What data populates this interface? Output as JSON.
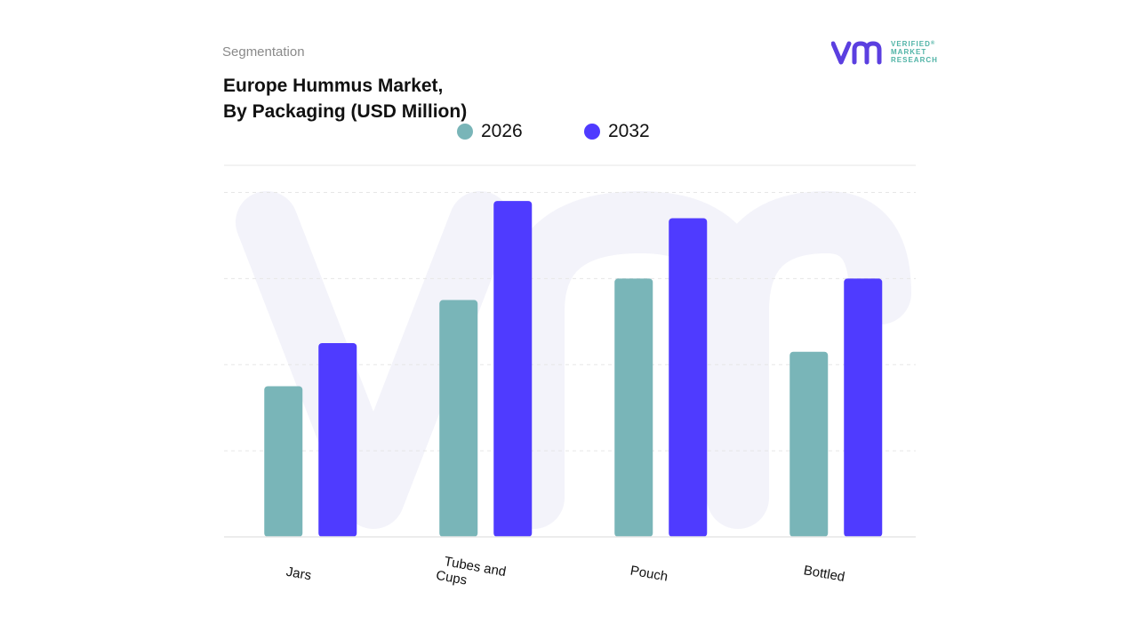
{
  "header": {
    "section": "Segmentation",
    "title_line1": "Europe Hummus Market,",
    "title_line2": "By Packaging (USD Million)"
  },
  "logo": {
    "line1": "VERIFIED",
    "line2": "MARKET",
    "line3": "RESEARCH",
    "mark": "®"
  },
  "colors": {
    "series_2026": "#79b5b8",
    "series_2032": "#4f3bff",
    "grid": "#e6e6e6",
    "watermark": "#f3f3fa"
  },
  "chart_data": {
    "type": "bar",
    "title": "Europe Hummus Market, By Packaging (USD Million)",
    "xlabel": "",
    "ylabel": "",
    "categories": [
      "Jars",
      "Tubes and Cups",
      "Pouch",
      "Bottled"
    ],
    "series": [
      {
        "name": "2026",
        "values": [
          35,
          55,
          60,
          43
        ]
      },
      {
        "name": "2032",
        "values": [
          45,
          78,
          74,
          60
        ]
      }
    ],
    "ylim": [
      0,
      90
    ],
    "grid": true,
    "legend": "top-center",
    "tick_labels_visible": false,
    "category_label_rotation": 10
  }
}
